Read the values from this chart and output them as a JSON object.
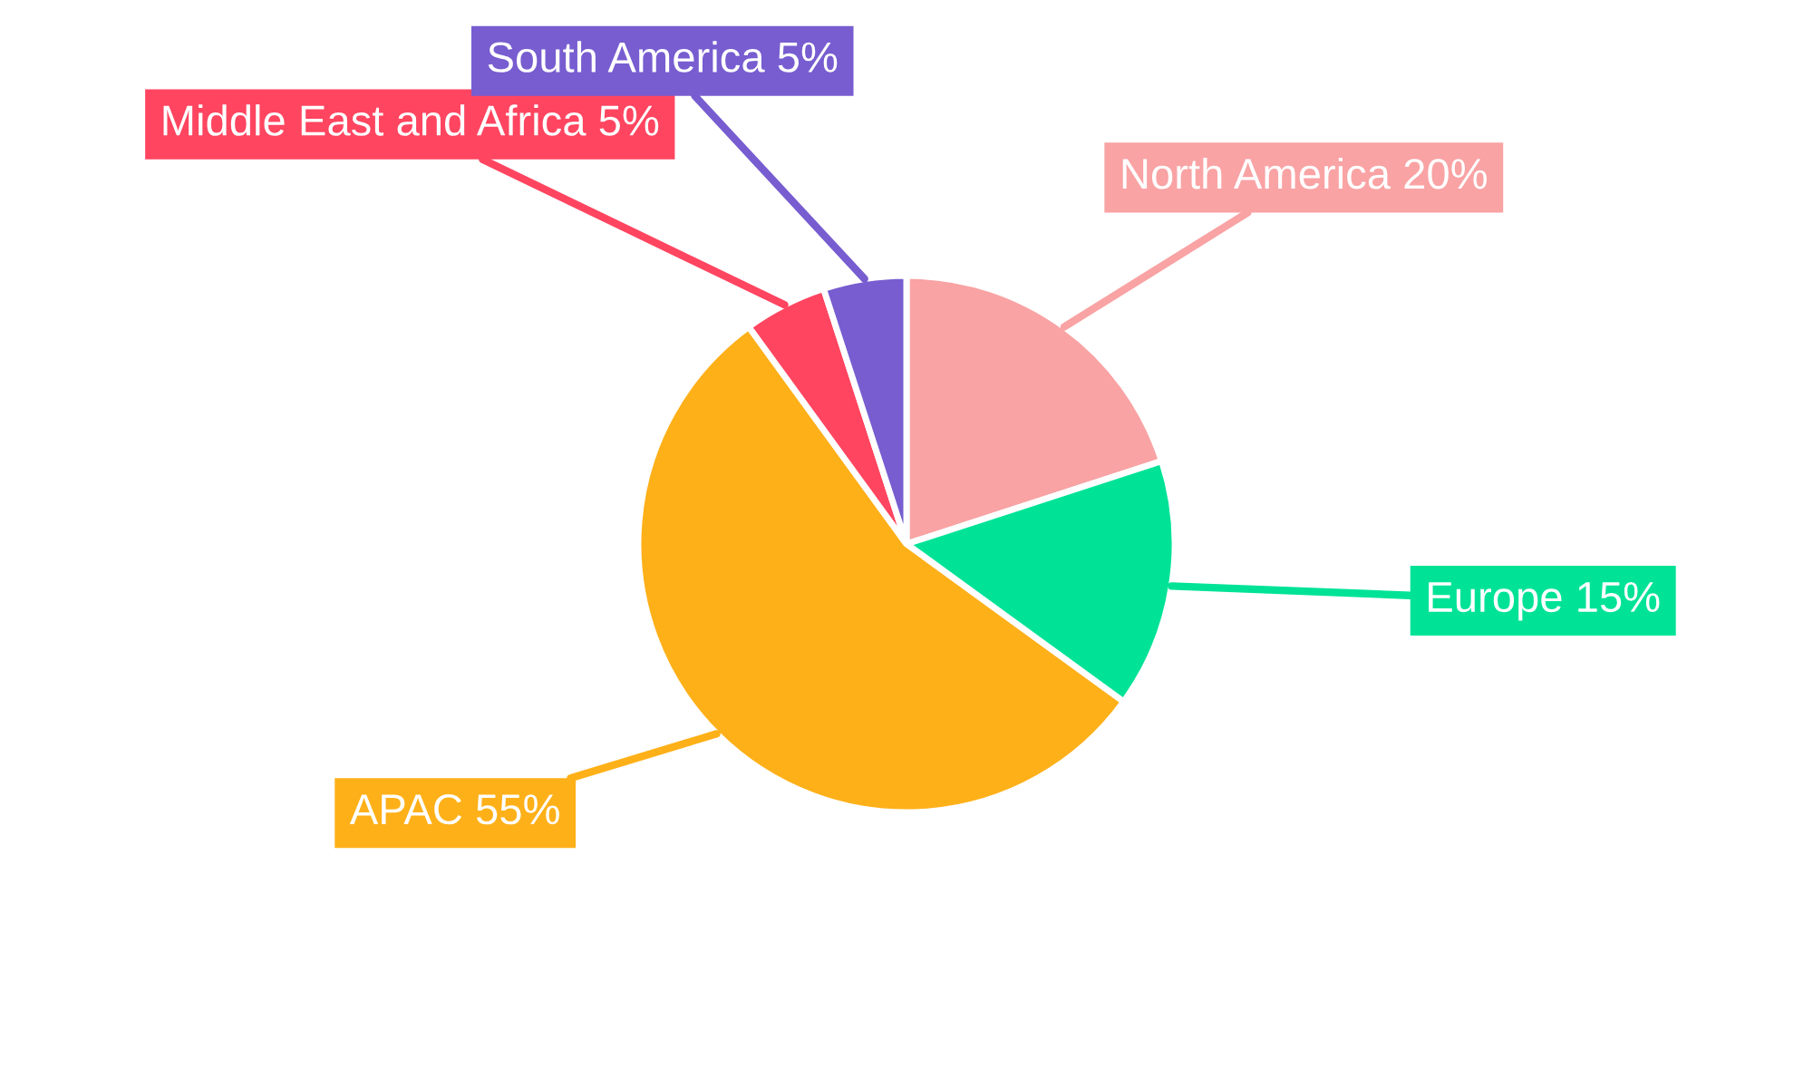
{
  "chart_data": {
    "type": "pie",
    "categories": [
      "North America",
      "Europe",
      "APAC",
      "Middle East and Africa",
      "South America"
    ],
    "values": [
      20,
      15,
      55,
      5,
      5
    ],
    "colors": [
      "#f9a3a4",
      "#00e396",
      "#feb019",
      "#ff4560",
      "#775dd0"
    ],
    "value_labels": [
      "20%",
      "15%",
      "55%",
      "5%",
      "5%"
    ],
    "legend": false
  }
}
